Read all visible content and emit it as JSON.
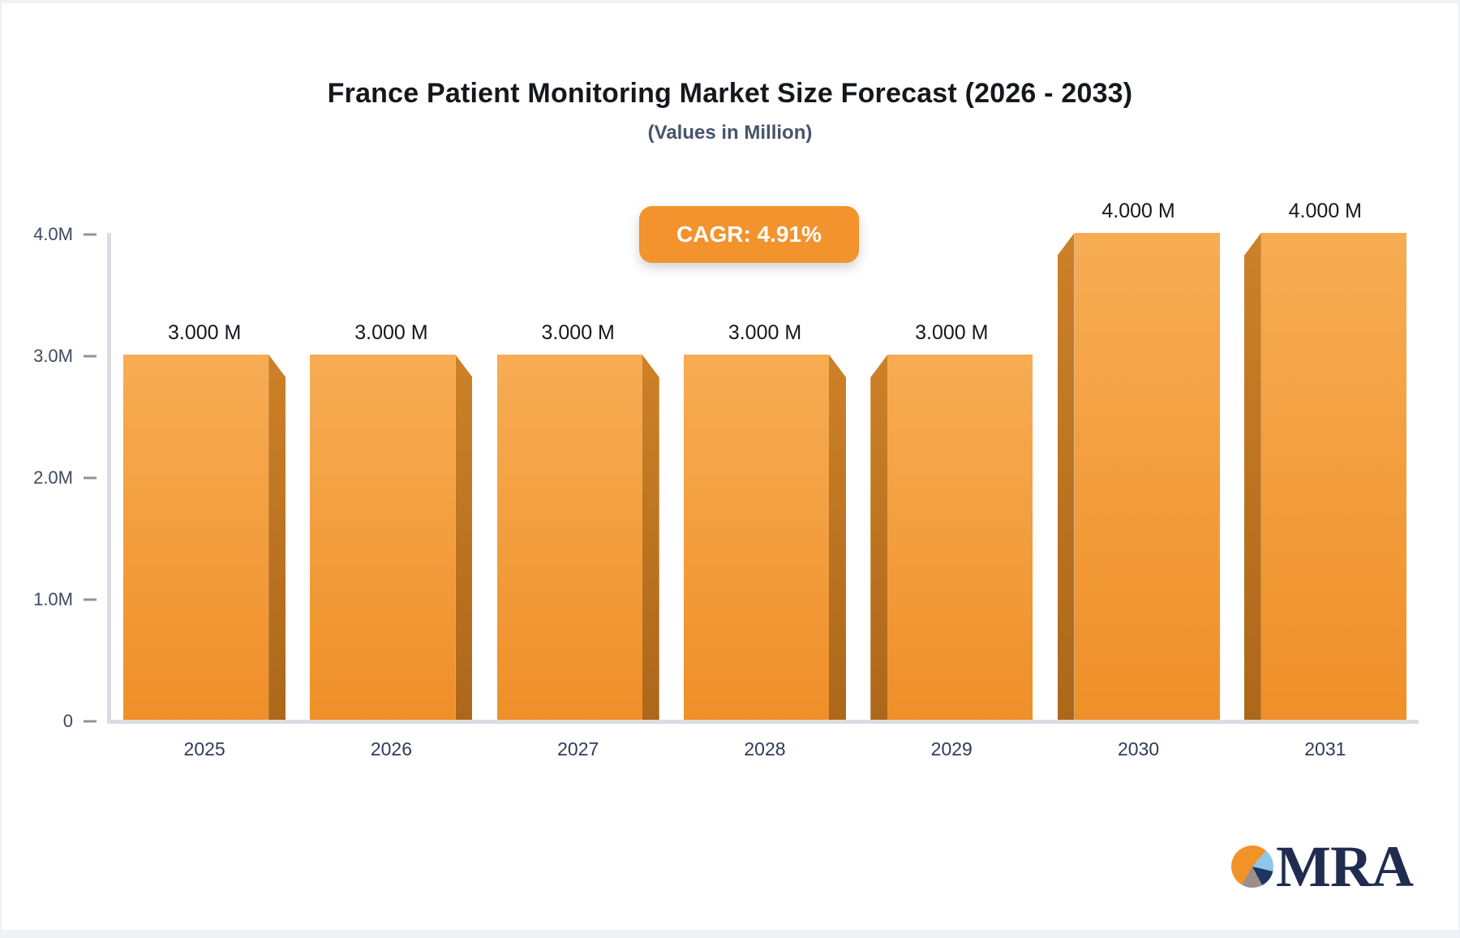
{
  "page": {
    "background": "#eef1f6",
    "card_background": "#ffffff"
  },
  "header": {
    "title": "France Patient Monitoring Market Size Forecast (2026 - 2033)",
    "subtitle": "(Values in Million)"
  },
  "badge": {
    "label": "CAGR: 4.91%",
    "background": "#f2932e",
    "text_color": "#ffffff"
  },
  "chart_data": {
    "type": "bar",
    "title": "France Patient Monitoring Market Size Forecast (2026 - 2033)",
    "subtitle": "(Values in Million)",
    "unit": "Million",
    "categories": [
      "2025",
      "2026",
      "2027",
      "2028",
      "2029",
      "2030",
      "2031"
    ],
    "values": [
      3,
      3,
      3,
      3,
      3,
      4,
      4
    ],
    "value_labels": [
      "3.000 M",
      "3.000 M",
      "3.000 M",
      "3.000 M",
      "3.000 M",
      "4.000 M",
      "4.000 M"
    ],
    "ylim": [
      0,
      4
    ],
    "y_ticks": [
      {
        "value": 0,
        "label": "0"
      },
      {
        "value": 1,
        "label": "1.0M"
      },
      {
        "value": 2,
        "label": "2.0M"
      },
      {
        "value": 3,
        "label": "3.0M"
      },
      {
        "value": 4,
        "label": "4.0M"
      }
    ],
    "grid": false,
    "legend": "none",
    "annotation": "CAGR: 4.91%",
    "bar_face_top_color": "#f7ac53",
    "bar_face_bottom_color": "#ef8f28",
    "bar_side_top_color": "#cd8128",
    "bar_side_bottom_color": "#ad671a",
    "bevel_sides": [
      "right",
      "right",
      "right",
      "right",
      "left",
      "left",
      "left"
    ],
    "axis_color": "#d9dce1",
    "tick_mark_color": "#8d93a0",
    "tick_label_color": "#3f4a61",
    "category_label_color": "#2e3c57",
    "value_label_color": "#15181d"
  },
  "logo": {
    "text": "MRA",
    "text_color": "#1f2c4f",
    "pie_slices": [
      {
        "name": "orange",
        "color": "#f39327"
      },
      {
        "name": "light-blue",
        "color": "#8ec6ea"
      },
      {
        "name": "navy",
        "color": "#1d3763"
      },
      {
        "name": "gray",
        "color": "#9c8f8b"
      }
    ]
  }
}
